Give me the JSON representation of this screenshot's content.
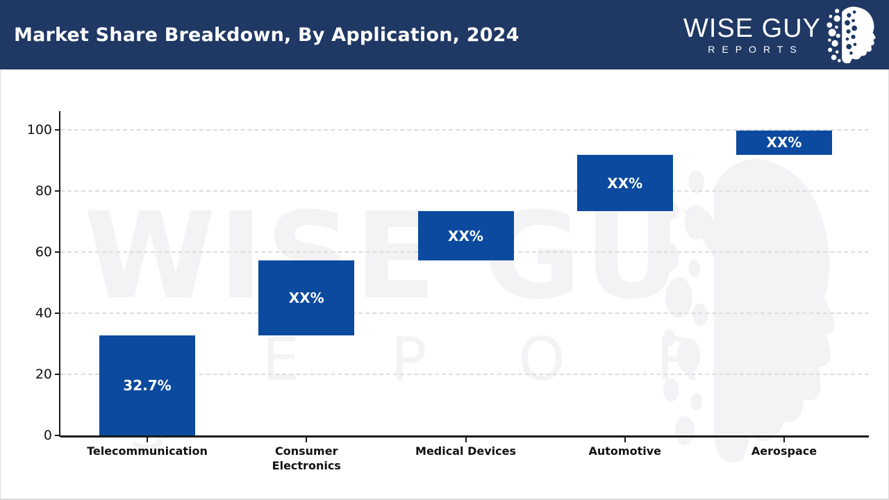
{
  "header": {
    "title": "Market Share Breakdown, By Application, 2024",
    "brand_line1": "WISE GUY",
    "brand_line2": "REPORTS",
    "bg_color": "#1f3864"
  },
  "watermark": {
    "line1": "WISE GUY",
    "line2": "R E P O R T S"
  },
  "chart_data": {
    "type": "bar",
    "subtype": "waterfall",
    "title": "Market Share Breakdown, By Application, 2024",
    "xlabel": "",
    "ylabel": "",
    "categories": [
      "Telecommunication",
      "Consumer\nElectronics",
      "Medical Devices",
      "Automotive",
      "Aerospace"
    ],
    "segments": [
      {
        "category": "Telecommunication",
        "start": 0,
        "end": 32.7,
        "label": "32.7%"
      },
      {
        "category": "Consumer Electronics",
        "start": 32.7,
        "end": 57.2,
        "label": "XX%"
      },
      {
        "category": "Medical Devices",
        "start": 57.2,
        "end": 73.3,
        "label": "XX%"
      },
      {
        "category": "Automotive",
        "start": 73.3,
        "end": 91.7,
        "label": "XX%"
      },
      {
        "category": "Aerospace",
        "start": 91.7,
        "end": 99.7,
        "label": "XX%"
      }
    ],
    "yticks": [
      0,
      20,
      40,
      60,
      80,
      100
    ],
    "ylim": [
      0,
      106
    ],
    "grid": "horizontal-dashed",
    "legend": "none",
    "bar_color": "#0b4a9e",
    "bar_label_color": "#ffffff"
  }
}
